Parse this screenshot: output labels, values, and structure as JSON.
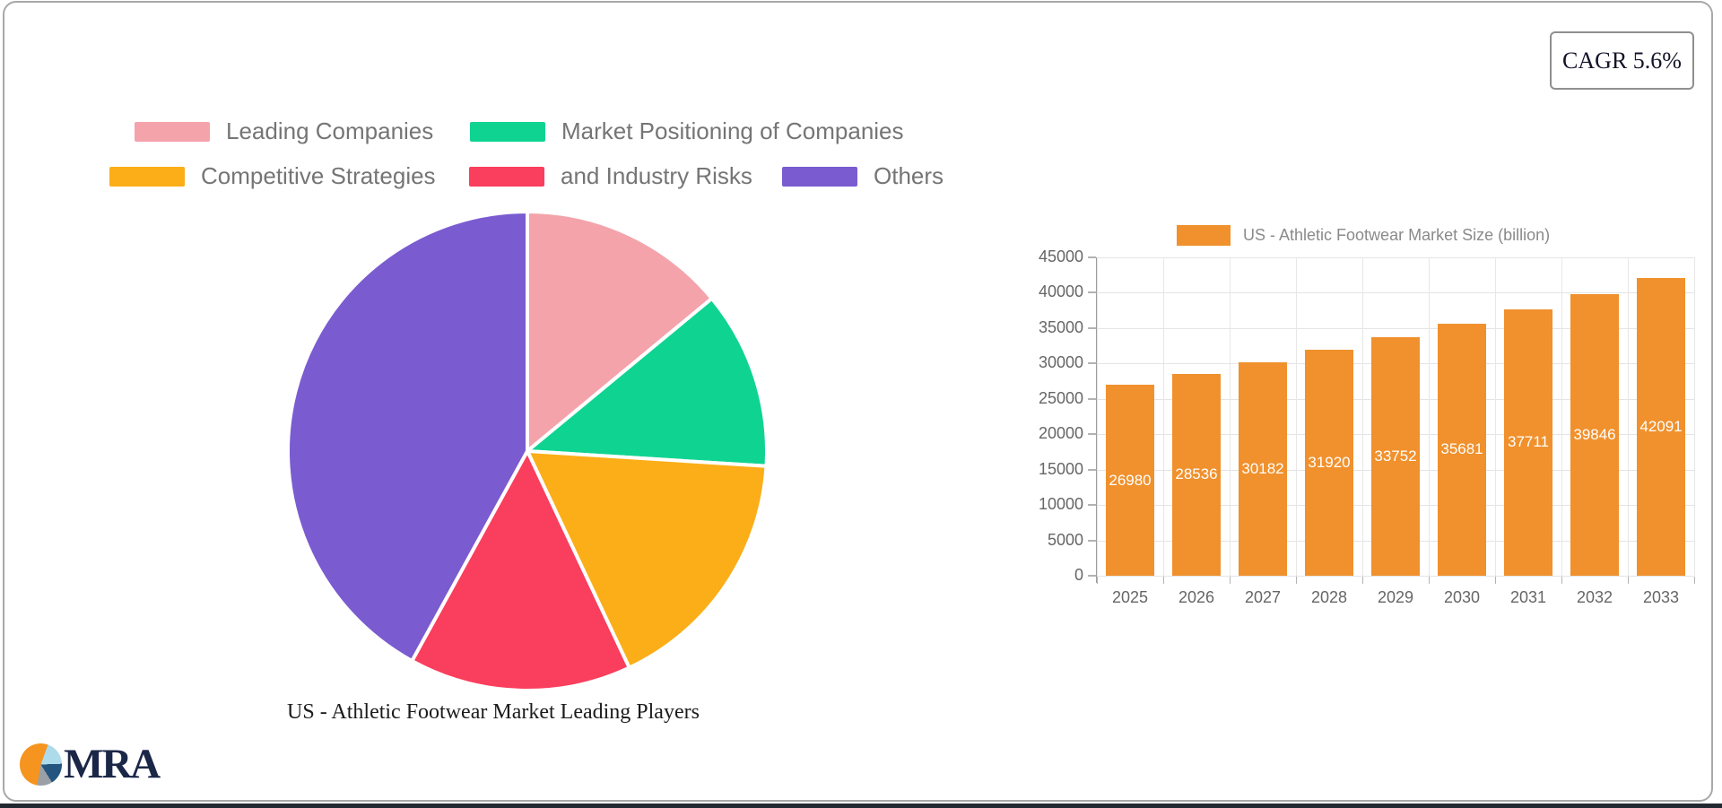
{
  "cagr_label": "CAGR 5.6%",
  "logo_text": "MRA",
  "chart_data": [
    {
      "type": "pie",
      "title": "US - Athletic Footwear Market Leading Players",
      "legend_position": "top",
      "slices": [
        {
          "label": "Leading Companies",
          "value": 14,
          "color": "#f4a3ab"
        },
        {
          "label": "Market Positioning of Companies",
          "value": 12,
          "color": "#0fd491"
        },
        {
          "label": "Competitive Strategies",
          "value": 17,
          "color": "#fbae17"
        },
        {
          "label": "and Industry Risks",
          "value": 15,
          "color": "#fa3e5d"
        },
        {
          "label": "Others",
          "value": 42,
          "color": "#7a5bd0"
        }
      ],
      "start_angle_deg": 0,
      "direction": "clockwise"
    },
    {
      "type": "bar",
      "series_label": "US - Athletic Footwear Market Size (billion)",
      "categories": [
        "2025",
        "2026",
        "2027",
        "2028",
        "2029",
        "2030",
        "2031",
        "2032",
        "2033"
      ],
      "values": [
        26980,
        28536,
        30182,
        31920,
        33752,
        35681,
        37711,
        39846,
        42091
      ],
      "bar_color": "#f0912d",
      "value_label_color": "#ffffff",
      "ylim": [
        0,
        45000
      ],
      "ytick_step": 5000,
      "grid": true,
      "legend_position": "top"
    }
  ]
}
